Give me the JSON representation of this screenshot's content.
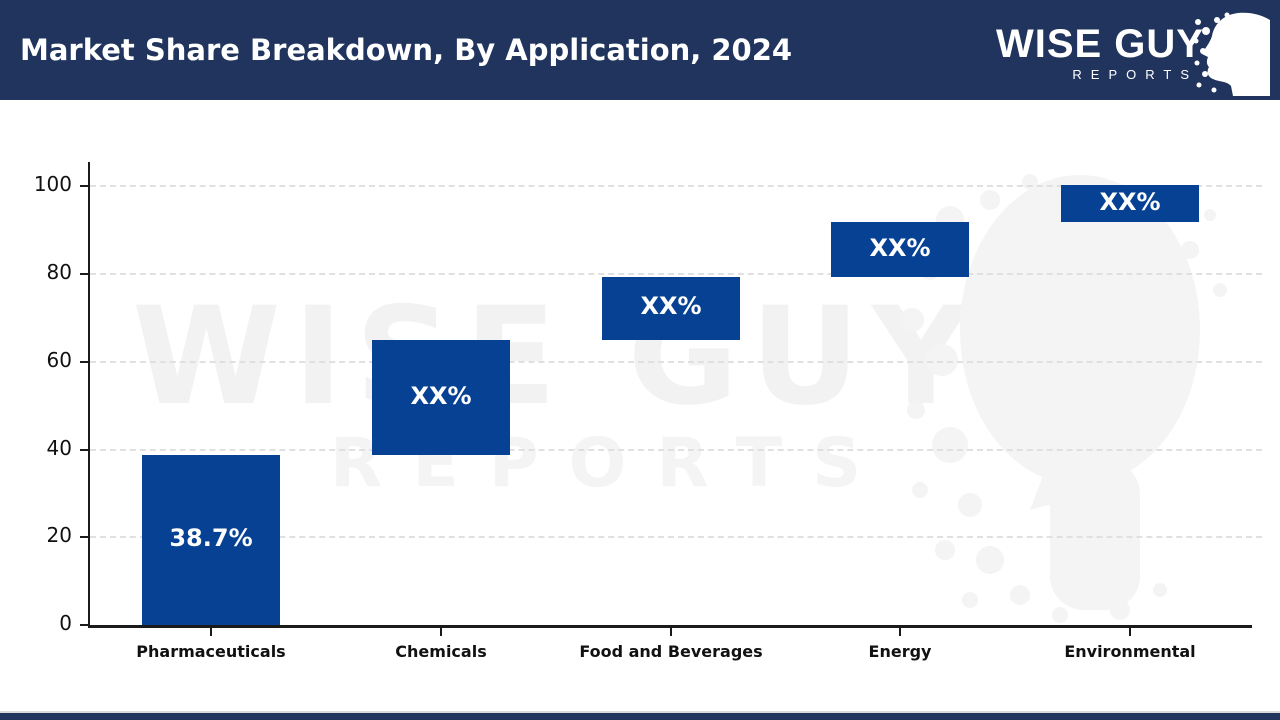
{
  "header": {
    "title": "Market Share Breakdown, By Application, 2024",
    "logo": {
      "line1": "WISE GUY",
      "line2": "REPORTS"
    }
  },
  "watermark": {
    "line1": "WISE GUY",
    "line2": "REPORTS"
  },
  "colors": {
    "header_background": "#20345e",
    "bar_blue": "#064193",
    "bar_label_white": "#ffffff",
    "gridline_gray": "#e0e0e0",
    "axis_black": "#1a1a1a",
    "watermark_gray": "#f2f2f2"
  },
  "chart_data": {
    "type": "bar",
    "subtype": "waterfall",
    "title": "Market Share Breakdown, By Application, 2024",
    "categories": [
      "Pharmaceuticals",
      "Chemicals",
      "Food and Beverages",
      "Energy",
      "Environmental"
    ],
    "bars": [
      {
        "category": "Pharmaceuticals",
        "label": "38.7%",
        "start": 0,
        "end": 38.7
      },
      {
        "category": "Chemicals",
        "label": "XX%",
        "start": 38.7,
        "end": 65.0
      },
      {
        "category": "Food and Beverages",
        "label": "XX%",
        "start": 65.0,
        "end": 79.3
      },
      {
        "category": "Energy",
        "label": "XX%",
        "start": 79.3,
        "end": 91.8
      },
      {
        "category": "Environmental",
        "label": "XX%",
        "start": 91.8,
        "end": 100.3
      }
    ],
    "yticks": [
      0,
      20,
      40,
      60,
      80,
      100
    ],
    "ylim": [
      0,
      105
    ],
    "xlabel": "",
    "ylabel": "",
    "grid": "horizontal-dashed",
    "legend": "none",
    "bar_color": "#064193",
    "label_color": "#ffffff"
  }
}
